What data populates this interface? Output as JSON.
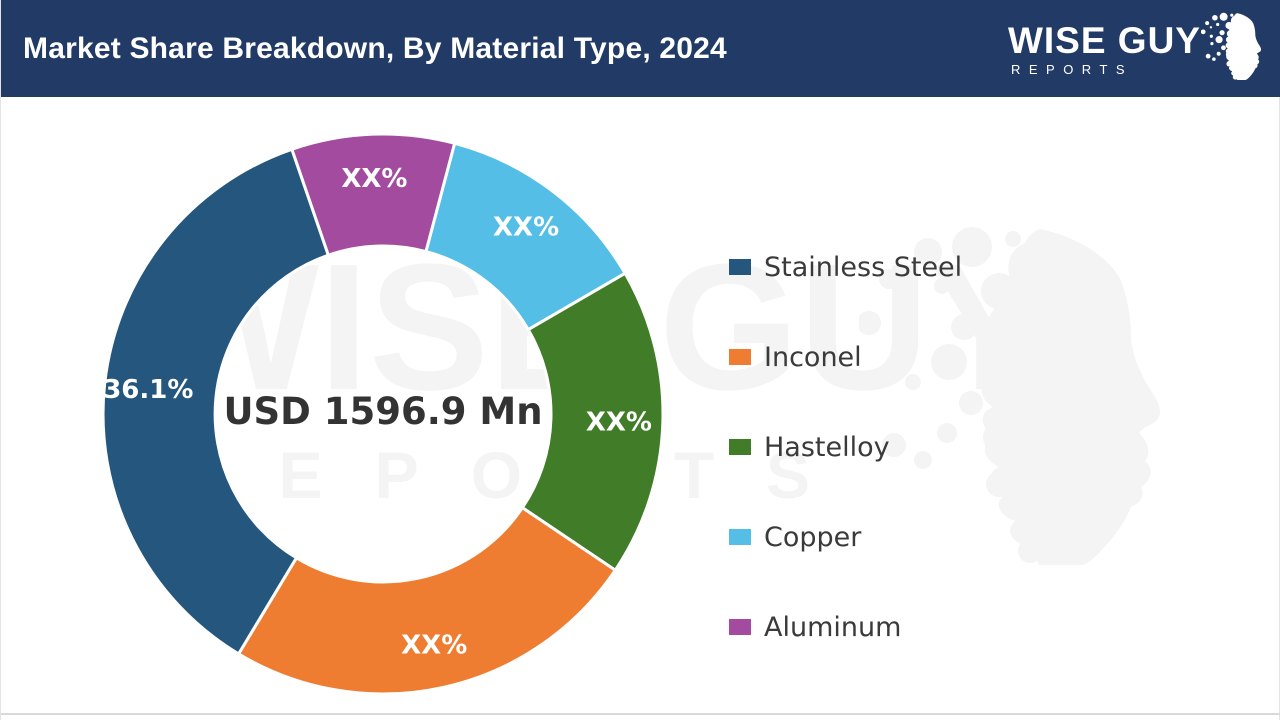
{
  "header": {
    "title": "Market Share Breakdown, By Material Type, 2024",
    "background_color": "#213A66",
    "logo": {
      "line1": "WISE GUY",
      "line2": "REPORTS"
    }
  },
  "watermark": {
    "line1": "WISE GUY",
    "line2": "REPORTS"
  },
  "chart_data": {
    "type": "pie",
    "subtype": "donut",
    "title": "Market Share Breakdown, By Material Type, 2024",
    "center_label": "USD 1596.9 Mn",
    "total_value_text": "USD 1596.9 Mn",
    "start_angle_deg": -19,
    "outer_radius": 280,
    "inner_radius": 168,
    "label_radius": 236,
    "legend_position": "right",
    "slices": [
      {
        "name": "Aluminum",
        "value": 9.4,
        "label": "XX%",
        "color": "#A34B9E"
      },
      {
        "name": "Copper",
        "value": 12.5,
        "label": "XX%",
        "color": "#54BEE6"
      },
      {
        "name": "Hastelloy",
        "value": 17.8,
        "label": "XX%",
        "color": "#417C28"
      },
      {
        "name": "Inconel",
        "value": 24.2,
        "label": "XX%",
        "color": "#EE7D31"
      },
      {
        "name": "Stainless Steel",
        "value": 36.1,
        "label": "36.1%",
        "color": "#24567E"
      }
    ],
    "legend": [
      {
        "label": "Stainless Steel",
        "color": "#24567E"
      },
      {
        "label": "Inconel",
        "color": "#EE7D31"
      },
      {
        "label": "Hastelloy",
        "color": "#417C28"
      },
      {
        "label": "Copper",
        "color": "#54BEE6"
      },
      {
        "label": "Aluminum",
        "color": "#A34B9E"
      }
    ]
  }
}
